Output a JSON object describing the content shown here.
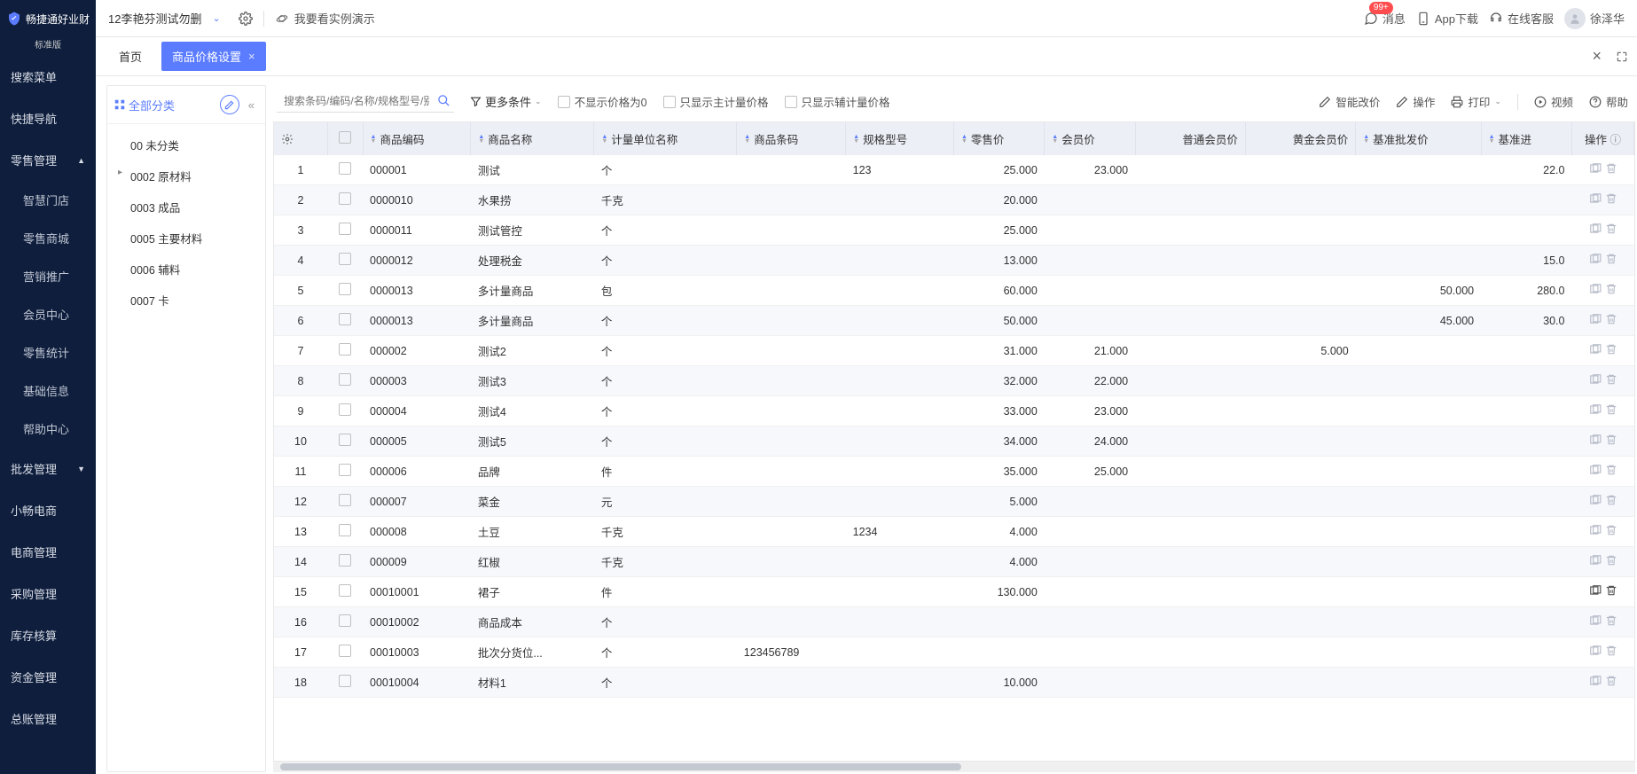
{
  "brand": {
    "name": "畅捷通好业财",
    "edition": "标准版"
  },
  "header": {
    "org": "12李艳芬测试勿删",
    "demo": "我要看实例演示",
    "msg": "消息",
    "msg_badge": "99+",
    "app": "App下载",
    "cs": "在线客服",
    "user": "徐泽华"
  },
  "tabs": {
    "home": "首页",
    "active": "商品价格设置"
  },
  "sidebar": {
    "search": "搜索菜单",
    "quick": "快捷导航",
    "retail": "零售管理",
    "retail_subs": [
      "智慧门店",
      "零售商城",
      "营销推广",
      "会员中心",
      "零售统计",
      "基础信息",
      "帮助中心"
    ],
    "rest": [
      "批发管理",
      "小畅电商",
      "电商管理",
      "采购管理",
      "库存核算",
      "资金管理",
      "总账管理"
    ]
  },
  "cat": {
    "title": "全部分类",
    "items": [
      {
        "label": "00 未分类",
        "child": false
      },
      {
        "label": "0002 原材料",
        "child": true
      },
      {
        "label": "0003 成品",
        "child": false
      },
      {
        "label": "0005 主要材料",
        "child": false
      },
      {
        "label": "0006 辅料",
        "child": false
      },
      {
        "label": "0007 卡",
        "child": false
      }
    ]
  },
  "toolbar": {
    "search_ph": "搜索条码/编码/名称/规格型号/别名",
    "more": "更多条件",
    "chk1": "不显示价格为0",
    "chk2": "只显示主计量价格",
    "chk3": "只显示辅计量价格",
    "smart": "智能改价",
    "ops": "操作",
    "print": "打印",
    "video": "视频",
    "help": "帮助"
  },
  "columns": [
    "商品编码",
    "商品名称",
    "计量单位名称",
    "商品条码",
    "规格型号",
    "零售价",
    "会员价",
    "普通会员价",
    "黄金会员价",
    "基准批发价",
    "基准进",
    "操作"
  ],
  "ops_help": "操作 ⓘ",
  "rows": [
    {
      "idx": 1,
      "code": "000001",
      "name": "测试",
      "unit": "个",
      "barcode": "",
      "spec": "123",
      "retail": "25.000",
      "member": "23.000",
      "normal": "",
      "gold": "",
      "whole": "",
      "base": "22.0"
    },
    {
      "idx": 2,
      "code": "0000010",
      "name": "水果捞",
      "unit": "千克",
      "barcode": "",
      "spec": "",
      "retail": "20.000",
      "member": "",
      "normal": "",
      "gold": "",
      "whole": "",
      "base": ""
    },
    {
      "idx": 3,
      "code": "0000011",
      "name": "测试管控",
      "unit": "个",
      "barcode": "",
      "spec": "",
      "retail": "25.000",
      "member": "",
      "normal": "",
      "gold": "",
      "whole": "",
      "base": ""
    },
    {
      "idx": 4,
      "code": "0000012",
      "name": "处理税金",
      "unit": "个",
      "barcode": "",
      "spec": "",
      "retail": "13.000",
      "member": "",
      "normal": "",
      "gold": "",
      "whole": "",
      "base": "15.0"
    },
    {
      "idx": 5,
      "code": "0000013",
      "name": "多计量商品",
      "unit": "包",
      "barcode": "",
      "spec": "",
      "retail": "60.000",
      "member": "",
      "normal": "",
      "gold": "",
      "whole": "50.000",
      "base": "280.0"
    },
    {
      "idx": 6,
      "code": "0000013",
      "name": "多计量商品",
      "unit": "个",
      "barcode": "",
      "spec": "",
      "retail": "50.000",
      "member": "",
      "normal": "",
      "gold": "",
      "whole": "45.000",
      "base": "30.0"
    },
    {
      "idx": 7,
      "code": "000002",
      "name": "测试2",
      "unit": "个",
      "barcode": "",
      "spec": "",
      "retail": "31.000",
      "member": "21.000",
      "normal": "",
      "gold": "5.000",
      "whole": "",
      "base": ""
    },
    {
      "idx": 8,
      "code": "000003",
      "name": "测试3",
      "unit": "个",
      "barcode": "",
      "spec": "",
      "retail": "32.000",
      "member": "22.000",
      "normal": "",
      "gold": "",
      "whole": "",
      "base": ""
    },
    {
      "idx": 9,
      "code": "000004",
      "name": "测试4",
      "unit": "个",
      "barcode": "",
      "spec": "",
      "retail": "33.000",
      "member": "23.000",
      "normal": "",
      "gold": "",
      "whole": "",
      "base": ""
    },
    {
      "idx": 10,
      "code": "000005",
      "name": "测试5",
      "unit": "个",
      "barcode": "",
      "spec": "",
      "retail": "34.000",
      "member": "24.000",
      "normal": "",
      "gold": "",
      "whole": "",
      "base": ""
    },
    {
      "idx": 11,
      "code": "000006",
      "name": "品牌",
      "unit": "件",
      "barcode": "",
      "spec": "",
      "retail": "35.000",
      "member": "25.000",
      "normal": "",
      "gold": "",
      "whole": "",
      "base": ""
    },
    {
      "idx": 12,
      "code": "000007",
      "name": "菜金",
      "unit": "元",
      "barcode": "",
      "spec": "",
      "retail": "5.000",
      "member": "",
      "normal": "",
      "gold": "",
      "whole": "",
      "base": ""
    },
    {
      "idx": 13,
      "code": "000008",
      "name": "土豆",
      "unit": "千克",
      "barcode": "",
      "spec": "1234",
      "retail": "4.000",
      "member": "",
      "normal": "",
      "gold": "",
      "whole": "",
      "base": ""
    },
    {
      "idx": 14,
      "code": "000009",
      "name": "红椒",
      "unit": "千克",
      "barcode": "",
      "spec": "",
      "retail": "4.000",
      "member": "",
      "normal": "",
      "gold": "",
      "whole": "",
      "base": ""
    },
    {
      "idx": 15,
      "code": "00010001",
      "name": "裙子",
      "unit": "件",
      "barcode": "",
      "spec": "",
      "retail": "130.000",
      "member": "",
      "normal": "",
      "gold": "",
      "whole": "",
      "base": "",
      "dark": true
    },
    {
      "idx": 16,
      "code": "00010002",
      "name": "商品成本",
      "unit": "个",
      "barcode": "",
      "spec": "",
      "retail": "",
      "member": "",
      "normal": "",
      "gold": "",
      "whole": "",
      "base": ""
    },
    {
      "idx": 17,
      "code": "00010003",
      "name": "批次分货位...",
      "unit": "个",
      "barcode": "123456789",
      "spec": "",
      "retail": "",
      "member": "",
      "normal": "",
      "gold": "",
      "whole": "",
      "base": ""
    },
    {
      "idx": 18,
      "code": "00010004",
      "name": "材料1",
      "unit": "个",
      "barcode": "",
      "spec": "",
      "retail": "10.000",
      "member": "",
      "normal": "",
      "gold": "",
      "whole": "",
      "base": ""
    }
  ]
}
